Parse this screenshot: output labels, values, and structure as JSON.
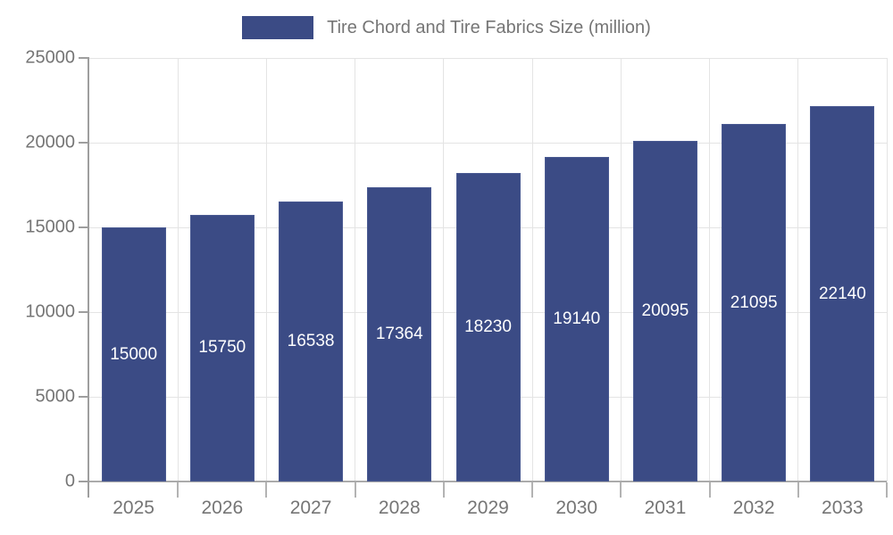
{
  "chart_data": {
    "type": "bar",
    "title": "Tire Chord and Tire Fabrics Size (million)",
    "series_name": "Tire Chord and Tire Fabrics Size (million)",
    "categories": [
      "2025",
      "2026",
      "2027",
      "2028",
      "2029",
      "2030",
      "2031",
      "2032",
      "2033"
    ],
    "values": [
      15000,
      15750,
      16538,
      17364,
      18230,
      19140,
      20095,
      21095,
      22140
    ],
    "bar_value_labels": [
      "15000",
      "15750",
      "16538",
      "17364",
      "18230",
      "19140",
      "20095",
      "21095",
      "22140"
    ],
    "xlabel": "",
    "ylabel": "",
    "ylim": [
      0,
      25000
    ],
    "yticks": [
      0,
      5000,
      10000,
      15000,
      20000,
      25000
    ],
    "ytick_labels": [
      "0",
      "5000",
      "10000",
      "15000",
      "20000",
      "25000"
    ],
    "grid": true,
    "legend_position": "top-center",
    "bar_labels_visible": true
  },
  "colors": {
    "bar": "#3B4B85",
    "bar_border": "#4a5a92",
    "bar_label": "#FFFFFF",
    "axis_text": "#757575",
    "legend_text": "#757575",
    "gridline": "#E4E4E4",
    "axis_line": "#9E9E9E",
    "tick": "#B3B3B3",
    "background": "#FFFFFF"
  }
}
